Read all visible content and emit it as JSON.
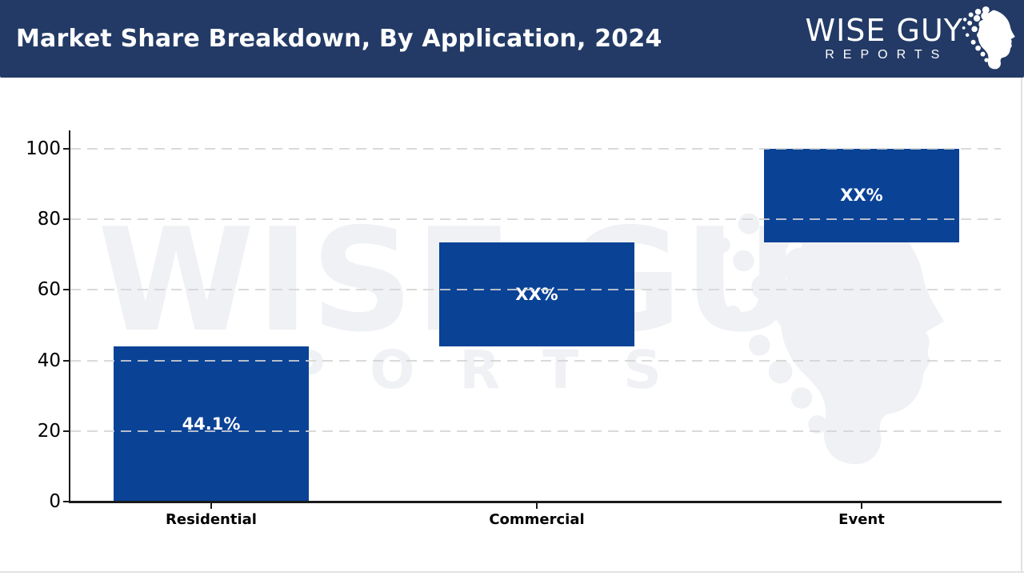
{
  "header": {
    "title": "Market Share Breakdown, By Application, 2024",
    "logo": {
      "line1": "WISE GUY",
      "line2": "REPORTS",
      "head_icon": "dotted-head-profile-icon"
    }
  },
  "watermark": {
    "line1": "WISE GUY",
    "line2": "REPORTS"
  },
  "colors": {
    "header_bg": "#233A66",
    "bar": "#0A4296",
    "grid": "#D4D4D4",
    "axis": "#1A1A1A",
    "bar_label": "#FFFFFF",
    "watermark": "#EFF1F4"
  },
  "chart_data": {
    "type": "bar",
    "subtype": "floating-segment-waterfall",
    "title": "Market Share Breakdown, By Application, 2024",
    "categories": [
      "Residential",
      "Commercial",
      "Event"
    ],
    "bars": [
      {
        "category": "Residential",
        "start": 0,
        "end": 44.1,
        "label": "44.1%"
      },
      {
        "category": "Commercial",
        "start": 44.1,
        "end": 73.5,
        "label": "XX%"
      },
      {
        "category": "Event",
        "start": 73.5,
        "end": 100,
        "label": "XX%"
      }
    ],
    "xlabel": "",
    "ylabel": "",
    "ylim": [
      0,
      105
    ],
    "yticks": [
      0,
      20,
      40,
      60,
      80,
      100
    ],
    "grid": "horizontal-dashed",
    "legend": "none"
  }
}
